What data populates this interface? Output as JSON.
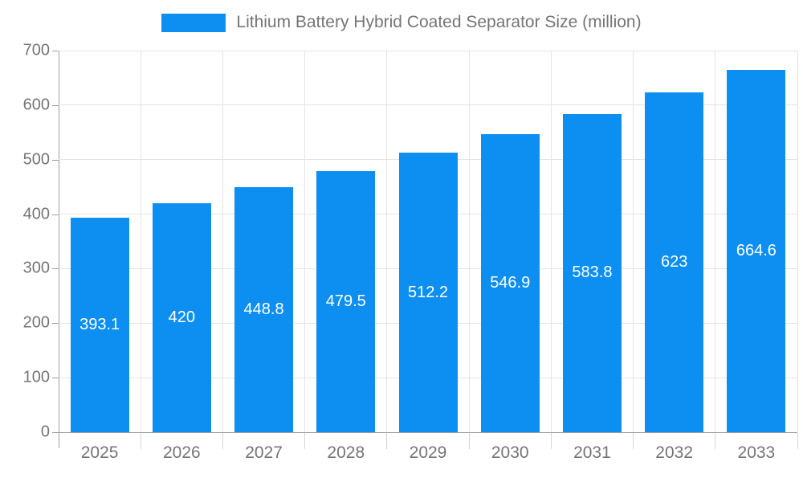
{
  "chart_data": {
    "type": "bar",
    "title": "",
    "legend": [
      "Lithium Battery Hybrid Coated Separator Size (million)"
    ],
    "legend_position": "top-center",
    "categories": [
      "2025",
      "2026",
      "2027",
      "2028",
      "2029",
      "2030",
      "2031",
      "2032",
      "2033"
    ],
    "values": [
      393.1,
      420,
      448.8,
      479.5,
      512.2,
      546.9,
      583.8,
      623,
      664.6
    ],
    "value_labels_shown": true,
    "value_label_position": "inside-middle",
    "xlabel": "",
    "ylabel": "",
    "ylim": [
      0,
      700
    ],
    "ytick_step": 100,
    "yticks": [
      0,
      100,
      200,
      300,
      400,
      500,
      600,
      700
    ],
    "grid": "both",
    "colors": {
      "bar": "#0d8ff2",
      "value_label": "#ffffff",
      "axis_text": "#757575",
      "legend_text": "#757575",
      "gridline": "#e4e4e4",
      "axis_line": "#9e9e9e",
      "background": "#ffffff"
    }
  }
}
